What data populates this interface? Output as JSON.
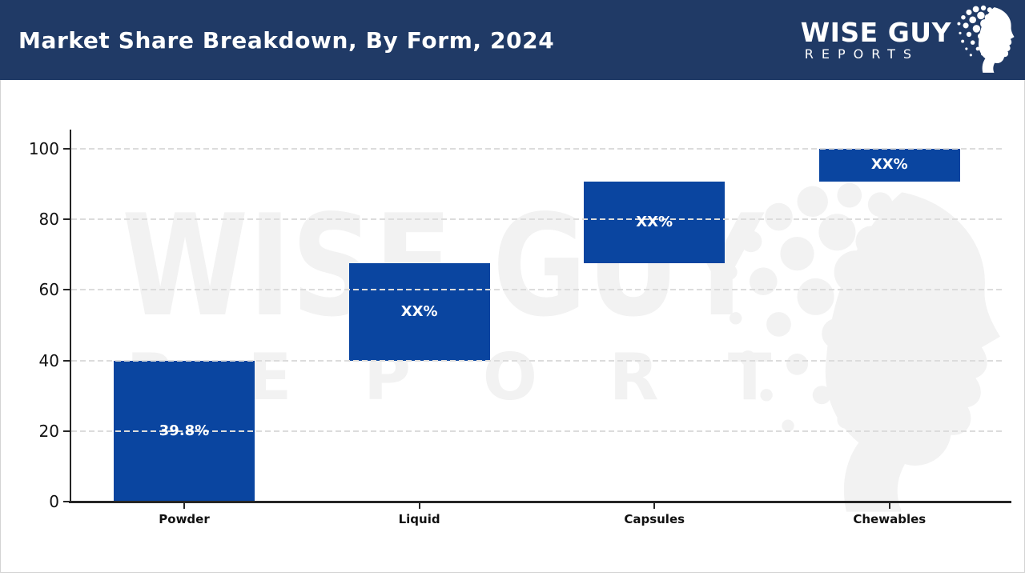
{
  "header": {
    "title": "Market Share Breakdown, By Form, 2024",
    "logo": {
      "brand_line1": "WISE GUY",
      "brand_line2": "REPORTS"
    }
  },
  "watermark": {
    "line1": "WISE GUY",
    "line2": "REPORTS"
  },
  "chart_data": {
    "type": "bar",
    "subtype": "waterfall",
    "title": "Market Share Breakdown, By Form, 2024",
    "categories": [
      "Powder",
      "Liquid",
      "Capsules",
      "Chewables"
    ],
    "segments": [
      {
        "category": "Powder",
        "start": 0,
        "end": 39.8,
        "label": "39.8%"
      },
      {
        "category": "Liquid",
        "start": 39.8,
        "end": 67.6,
        "label": "XX%"
      },
      {
        "category": "Capsules",
        "start": 67.6,
        "end": 90.8,
        "label": "XX%"
      },
      {
        "category": "Chewables",
        "start": 90.8,
        "end": 100,
        "label": "XX%"
      }
    ],
    "xlabel": "",
    "ylabel": "",
    "yticks": [
      0,
      20,
      40,
      60,
      80,
      100
    ],
    "ylim": [
      0,
      105
    ],
    "grid": "horizontal-dashed",
    "legend": "none"
  },
  "colors": {
    "header_bg": "#203a66",
    "title_text": "#ffffff",
    "bar": "#0a45a0",
    "bar_label": "#ffffff",
    "grid": "#dcdcdc",
    "axis": "#262626",
    "tick_label": "#111111",
    "watermark": "#f2f2f2"
  }
}
